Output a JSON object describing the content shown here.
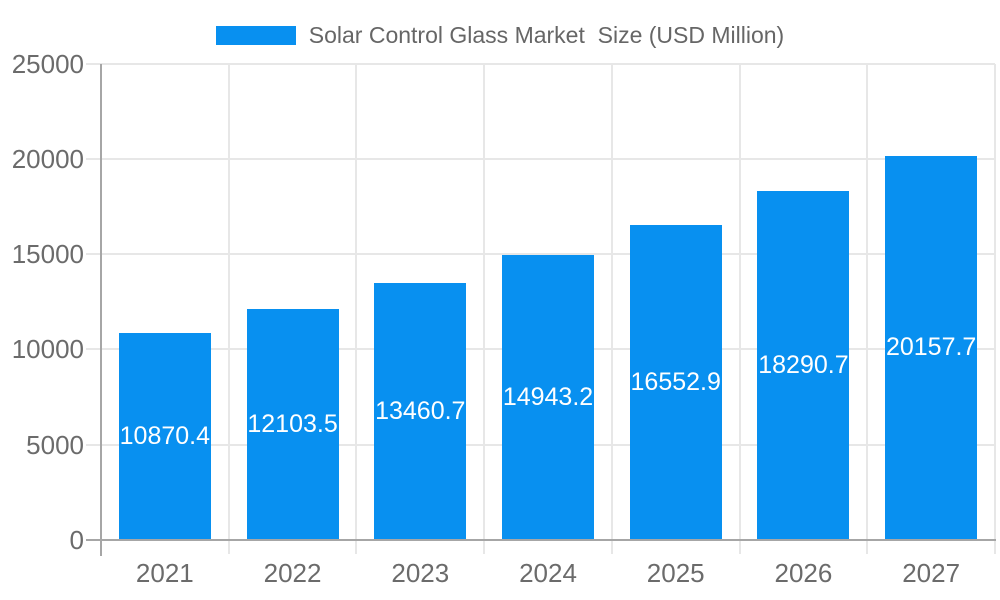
{
  "chart_data": {
    "type": "bar",
    "title": "Solar Control Glass Market  Size (USD Million)",
    "legend": {
      "position": "top",
      "label": "Solar Control Glass Market  Size (USD Million)"
    },
    "categories": [
      "2021",
      "2022",
      "2023",
      "2024",
      "2025",
      "2026",
      "2027"
    ],
    "values": [
      10870.4,
      12103.5,
      13460.7,
      14943.2,
      16552.9,
      18290.7,
      20157.7
    ],
    "value_labels": [
      "10870.4",
      "12103.5",
      "13460.7",
      "14943.2",
      "16552.9",
      "18290.7",
      "20157.7"
    ],
    "xlabel": "",
    "ylabel": "",
    "ylim": [
      0,
      25000
    ],
    "yticks": [
      0,
      5000,
      10000,
      15000,
      20000,
      25000
    ],
    "ytick_labels": [
      "0",
      "5000",
      "10000",
      "15000",
      "20000",
      "25000"
    ],
    "grid": true,
    "colors": {
      "bar": "#0890f0",
      "gridline": "#e7e7e7",
      "axis": "#a6a6a6",
      "axis_text": "#6b6b6b",
      "legend_text": "#666666",
      "value_label_text": "#ffffff",
      "background": "#ffffff"
    }
  }
}
